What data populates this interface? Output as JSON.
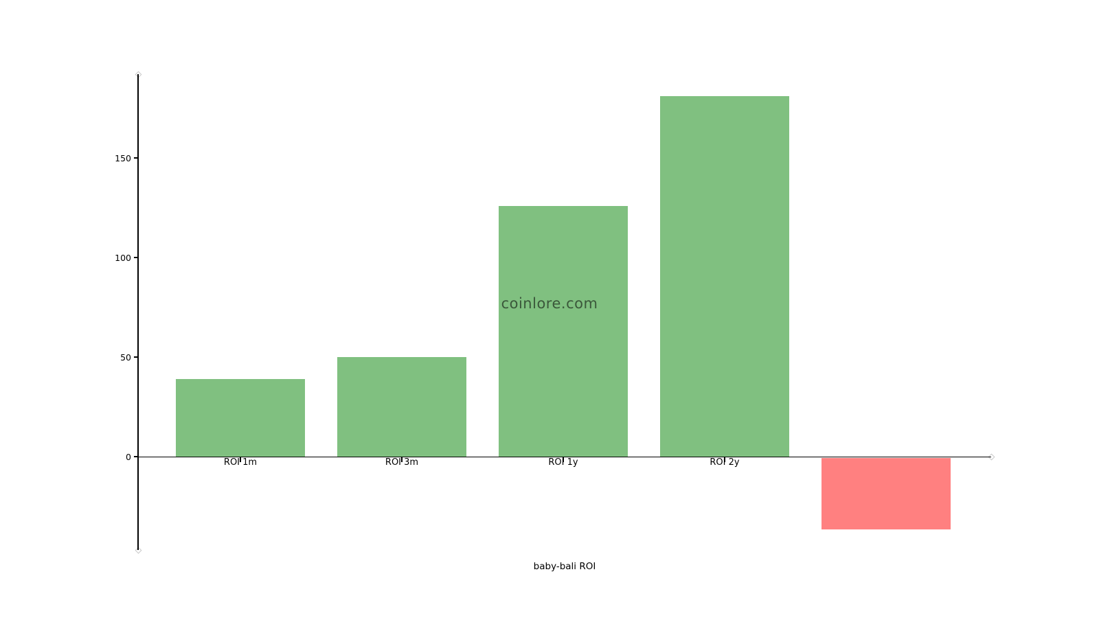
{
  "chart_data": {
    "type": "bar",
    "title": "baby-bali ROI",
    "watermark": "coinlore.com",
    "categories": [
      "ROI 1m",
      "ROI 3m",
      "ROI 1y",
      "ROI 2y",
      ""
    ],
    "values": [
      39,
      50,
      126,
      181,
      -36
    ],
    "yticks": [
      0,
      50,
      100,
      150
    ],
    "ylim": [
      -46,
      192
    ],
    "xlabel": "",
    "ylabel": "",
    "grid": false,
    "legend": null,
    "colors": {
      "positive_bar": "#80c080",
      "negative_bar": "#ff8080",
      "axis": "#000000",
      "watermark_text": "rgba(0,0,0,0.55)"
    }
  }
}
